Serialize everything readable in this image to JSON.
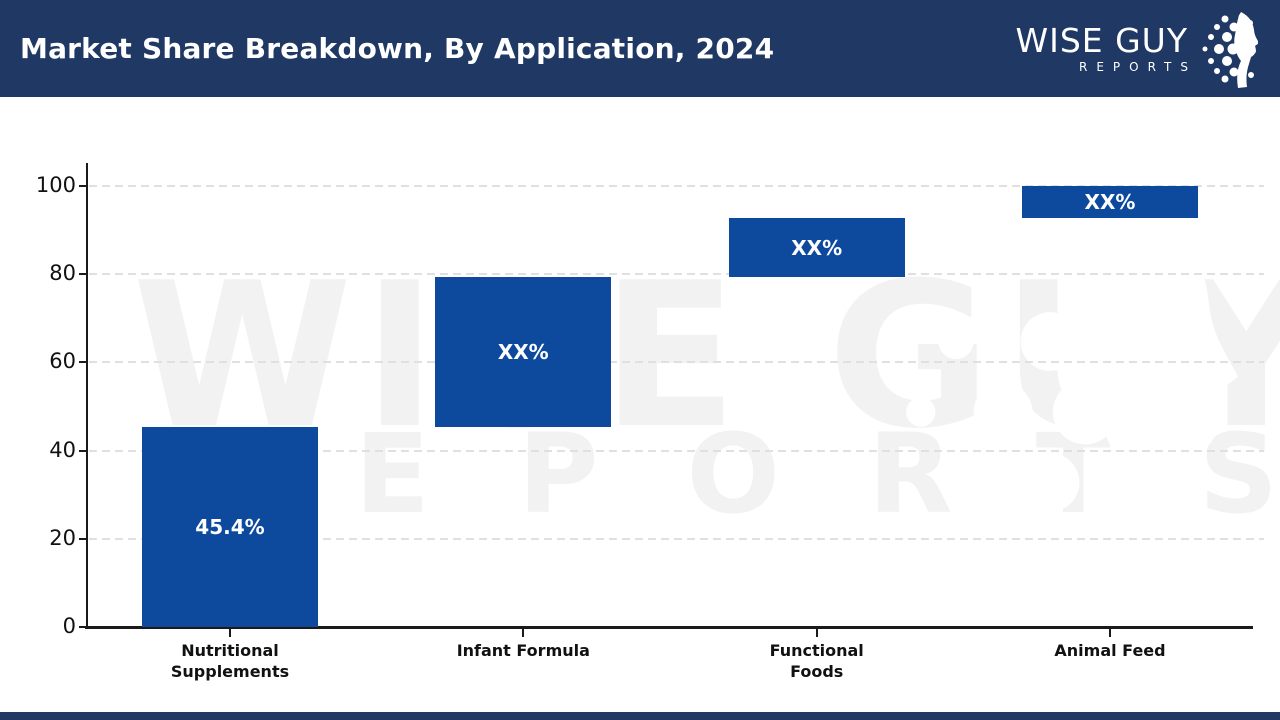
{
  "header": {
    "title": "Market Share Breakdown, By Application, 2024",
    "logo": {
      "wordmark": "WISE GUY",
      "reports": "REPORTS"
    }
  },
  "watermark": {
    "wordmark": "WISE GUY",
    "reports": "REPORTS"
  },
  "colors": {
    "header_navy": "#1f3864",
    "footer_navy": "#1f3864",
    "bar_blue": "#0d4a9e",
    "axis_black": "#1a1a1a",
    "grid_gray": "#e0e0e0",
    "watermark_gray": "#f2f2f2",
    "bar_label_white": "#ffffff"
  },
  "chart_data": {
    "type": "bar",
    "subtype": "waterfall",
    "title": "Market Share Breakdown, By Application, 2024",
    "categories": [
      "Nutritional Supplements",
      "Infant Formula",
      "Functional Foods",
      "Animal Feed"
    ],
    "series": [
      {
        "name": "Market Share (%)",
        "segments": [
          {
            "category": "Nutritional Supplements",
            "from": 0,
            "to": 45.4,
            "value": 45.4,
            "label": "45.4%"
          },
          {
            "category": "Infant Formula",
            "from": 45.4,
            "to": 79.4,
            "value": 34.0,
            "label": "XX%"
          },
          {
            "category": "Functional Foods",
            "from": 79.4,
            "to": 92.7,
            "value": 13.3,
            "label": "XX%"
          },
          {
            "category": "Animal Feed",
            "from": 92.7,
            "to": 100.0,
            "value": 7.3,
            "label": "XX%"
          }
        ]
      }
    ],
    "xlabel": "",
    "ylabel": "",
    "ylim": [
      0,
      100
    ],
    "yticks": [
      0,
      20,
      40,
      60,
      80,
      100
    ],
    "grid": "horizontal-dashed",
    "legend": "none",
    "bar_color": "#0d4a9e"
  }
}
